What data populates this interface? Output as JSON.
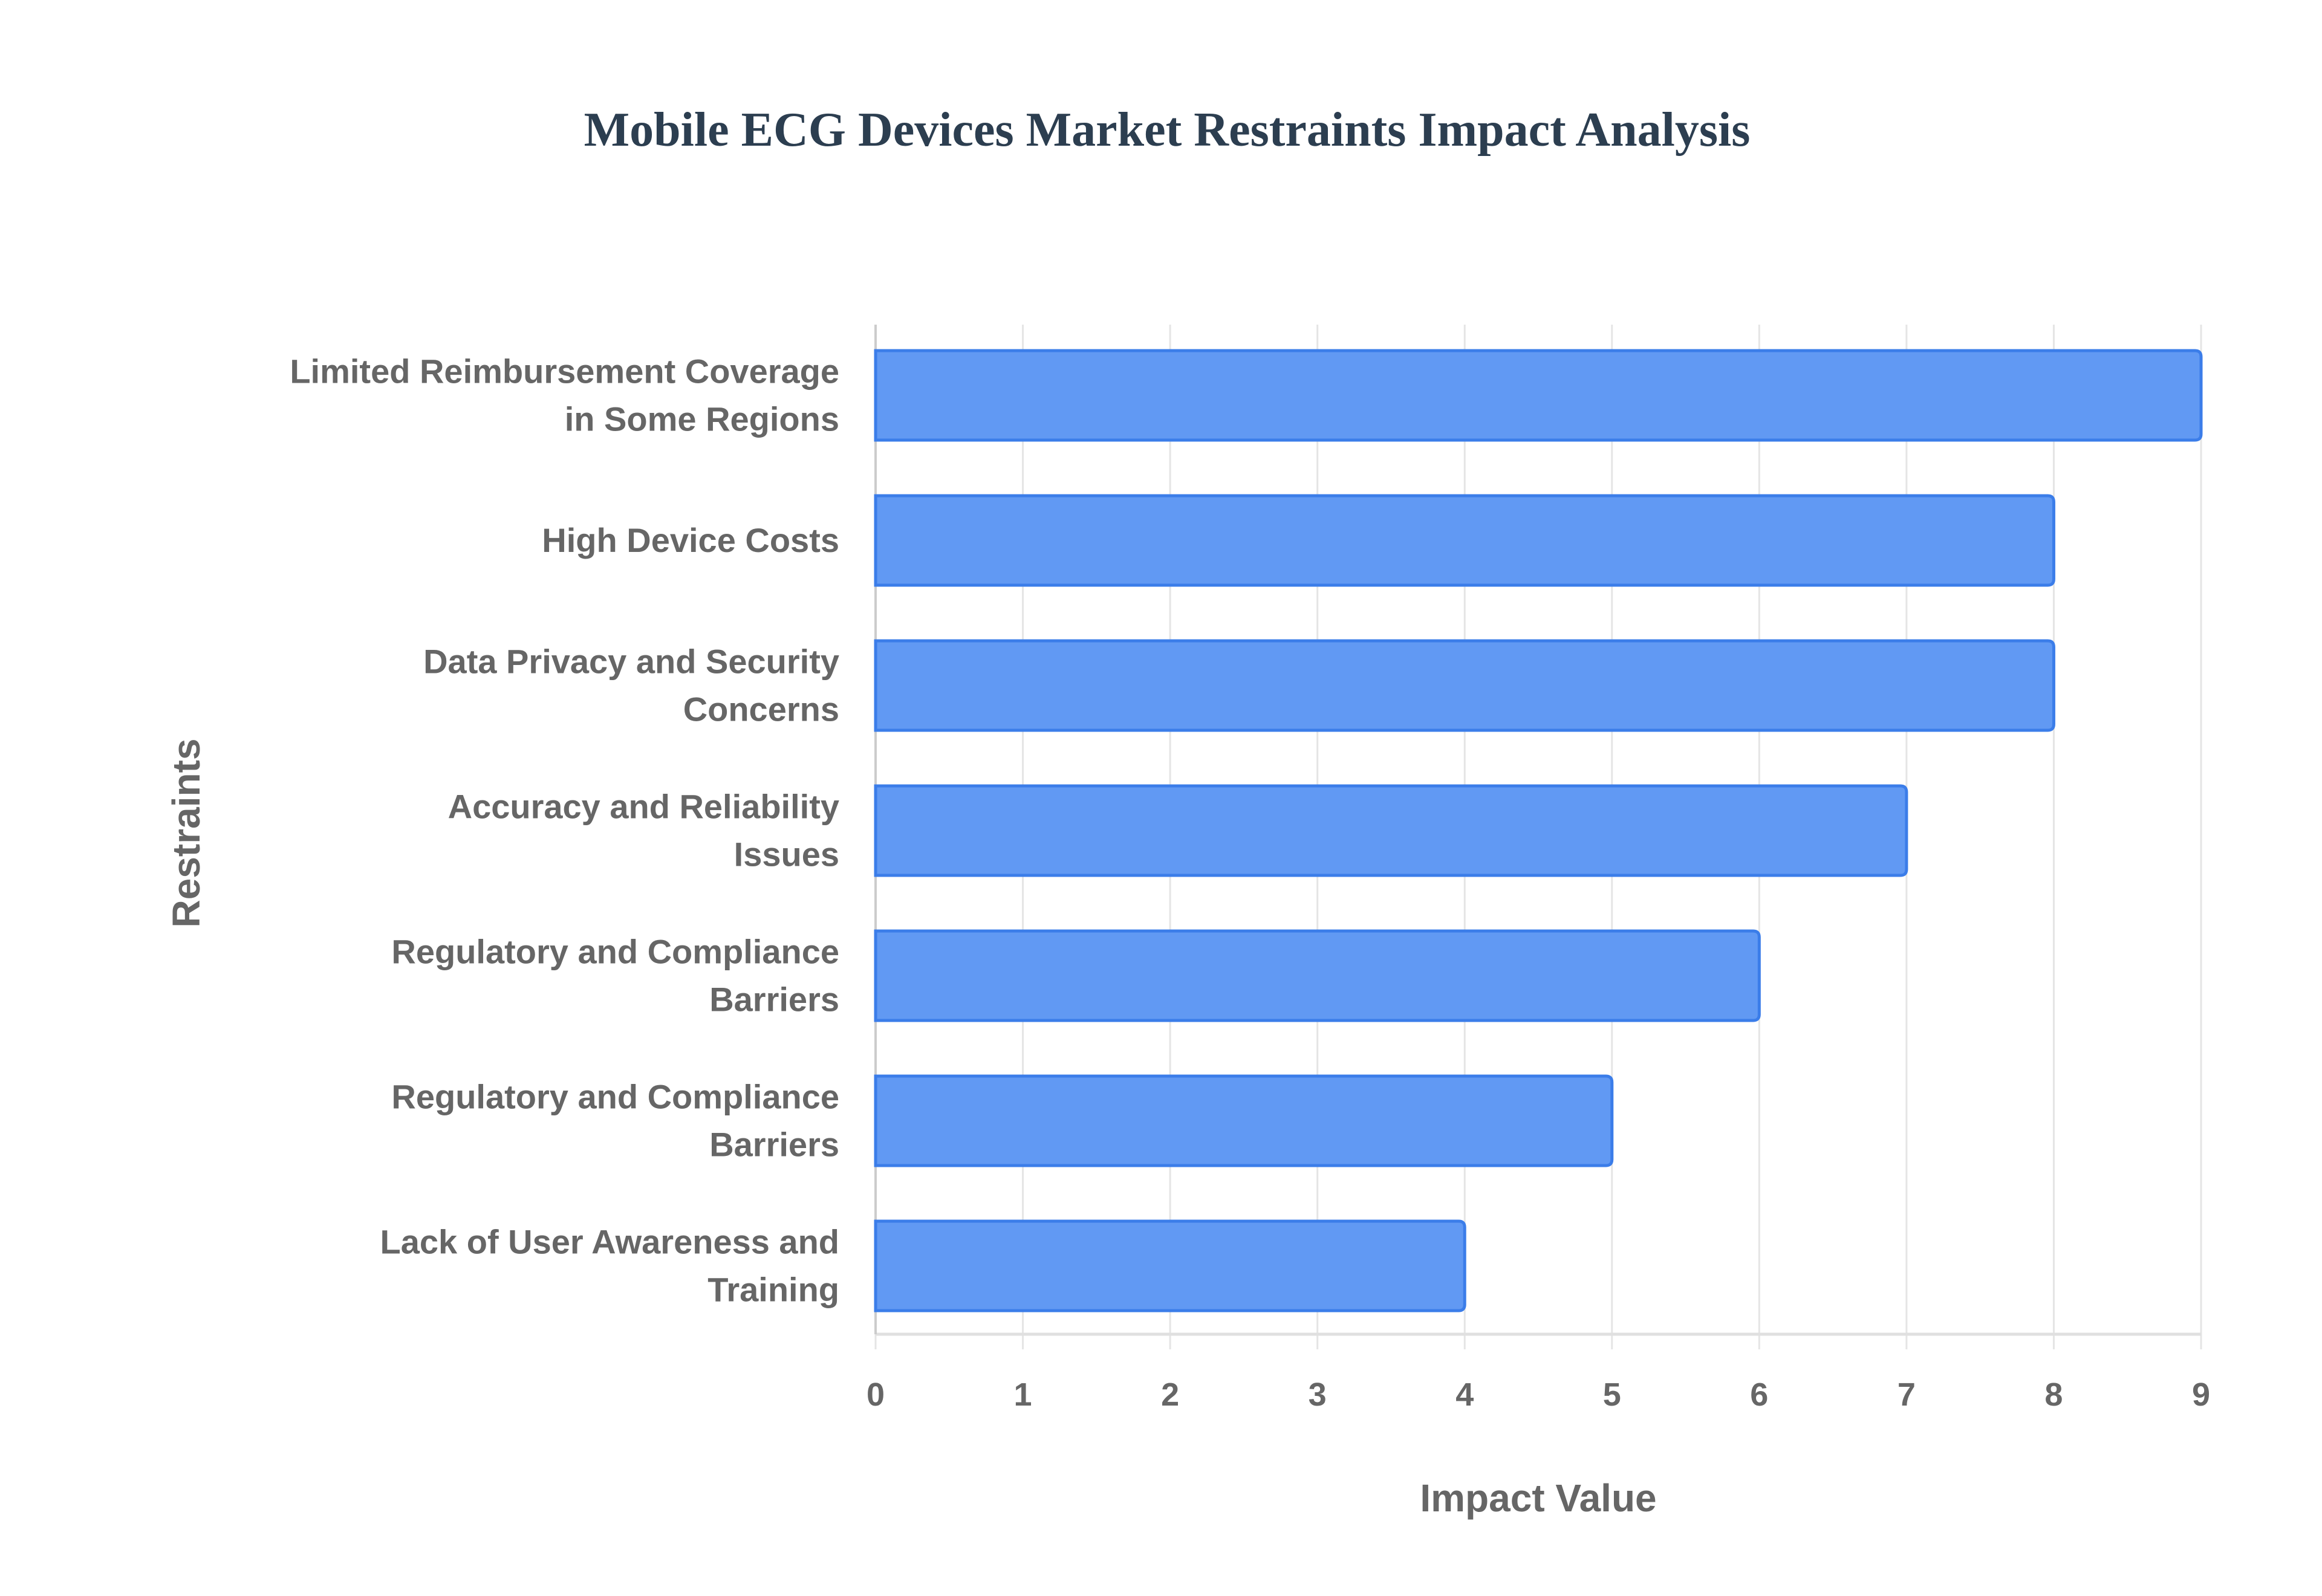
{
  "chart_data": {
    "type": "bar",
    "orientation": "horizontal",
    "title": "Mobile ECG Devices Market Restraints Impact Analysis",
    "xlabel": "Impact Value",
    "ylabel": "Restraints",
    "xlim": [
      0,
      9
    ],
    "xticks": [
      "0",
      "1",
      "2",
      "3",
      "4",
      "5",
      "6",
      "7",
      "8",
      "9"
    ],
    "grid": true,
    "categories": [
      [
        "Limited Reimbursement Coverage",
        "in Some Regions"
      ],
      [
        "High Device Costs"
      ],
      [
        "Data Privacy and Security",
        "Concerns"
      ],
      [
        "Accuracy and Reliability",
        "Issues"
      ],
      [
        "Regulatory and Compliance",
        "Barriers"
      ],
      [
        "Regulatory and Compliance",
        "Barriers"
      ],
      [
        "Lack of User Awareness and",
        "Training"
      ]
    ],
    "values": [
      9,
      8,
      8,
      7,
      6,
      5,
      4
    ],
    "colors": {
      "bar_fill": "#6199f3",
      "bar_border": "#3b7de9",
      "text": "#666666",
      "title": "#2c3e50",
      "grid": "#e5e5e5"
    }
  }
}
